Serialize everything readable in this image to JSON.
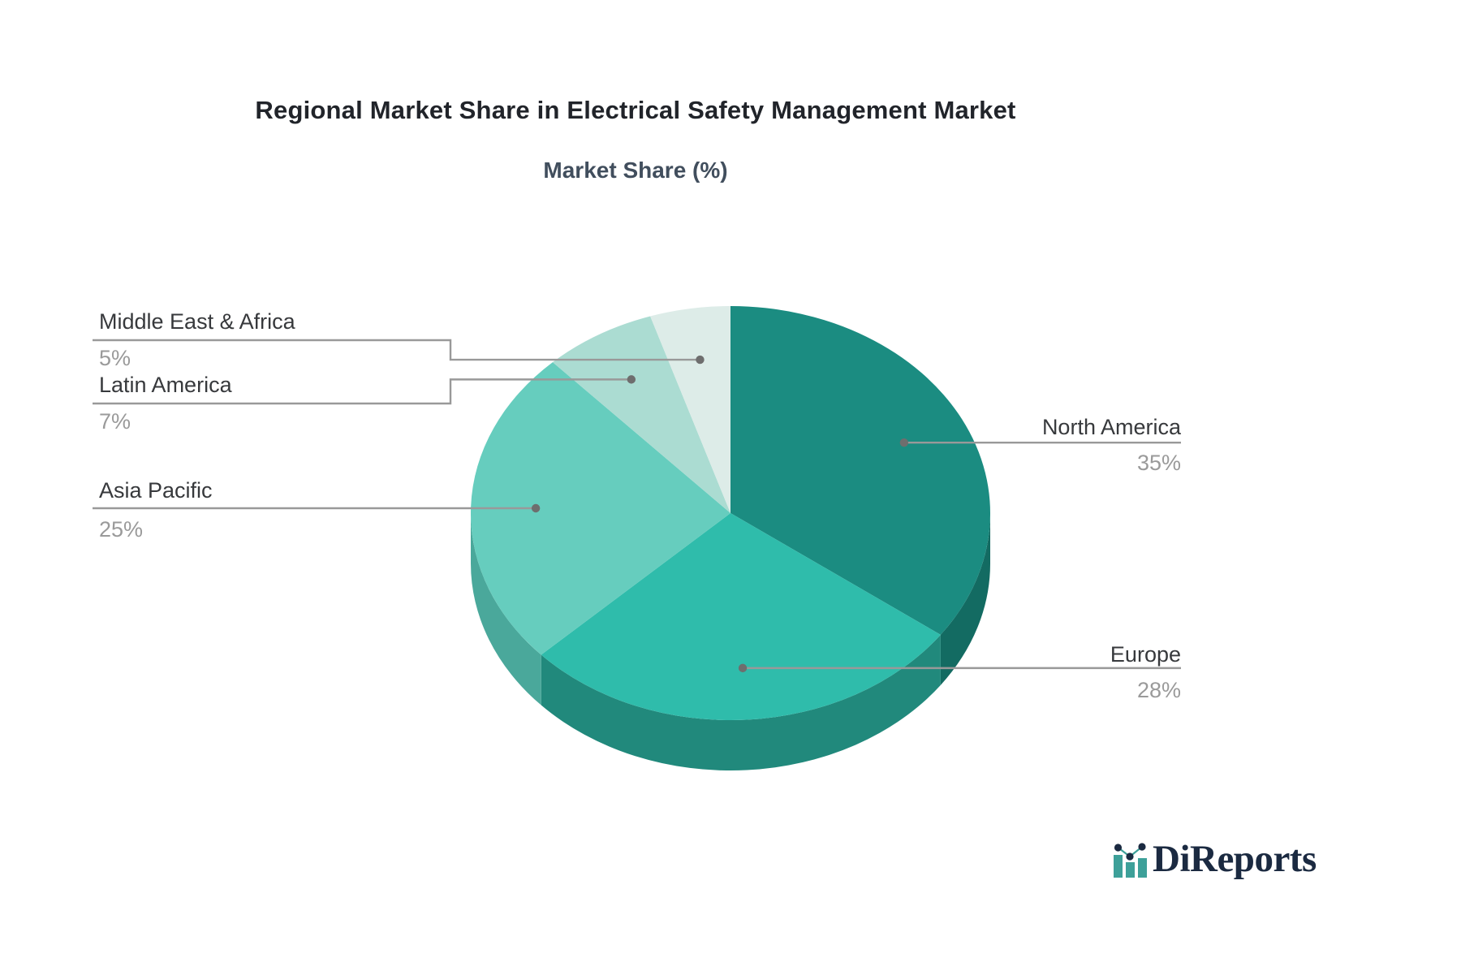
{
  "title": "Regional Market Share in Electrical Safety Management Market",
  "subtitle": "Market Share (%)",
  "chart_data": {
    "type": "pie",
    "title": "Regional Market Share in Electrical Safety Management Market",
    "subtitle": "Market Share (%)",
    "unit": "%",
    "style": "3d-pie",
    "direction": "clockwise",
    "start_angle": "12 o'clock",
    "legend_position": "callout-labels",
    "slices": [
      {
        "label": "North America",
        "value": 35,
        "pct_label": "35%",
        "color": "#1b8c81",
        "side_color": "#136b62",
        "label_side": "right"
      },
      {
        "label": "Europe",
        "value": 28,
        "pct_label": "28%",
        "color": "#2fbcab",
        "side_color": "#21897c",
        "label_side": "right"
      },
      {
        "label": "Asia Pacific",
        "value": 25,
        "pct_label": "25%",
        "color": "#66cdbe",
        "side_color": "#4aa89b",
        "label_side": "left"
      },
      {
        "label": "Latin America",
        "value": 7,
        "pct_label": "7%",
        "color": "#abdcd2",
        "side_color": "#8ec4ba",
        "label_side": "left"
      },
      {
        "label": "Middle East & Africa",
        "value": 5,
        "pct_label": "5%",
        "color": "#ddece8",
        "side_color": "#bcd8d2",
        "label_side": "left"
      }
    ],
    "leader_line_color": "#999999",
    "leader_dot_color": "#6e6e6e",
    "label_color": "#37393c",
    "pct_color": "#9a9a9a",
    "title_color": "#21242a",
    "subtitle_color": "#414e5d"
  },
  "logo": {
    "text": "DiReports",
    "bar_color": "#3da099",
    "mark_color": "#1b2a41",
    "text_color": "#1b2a41"
  }
}
